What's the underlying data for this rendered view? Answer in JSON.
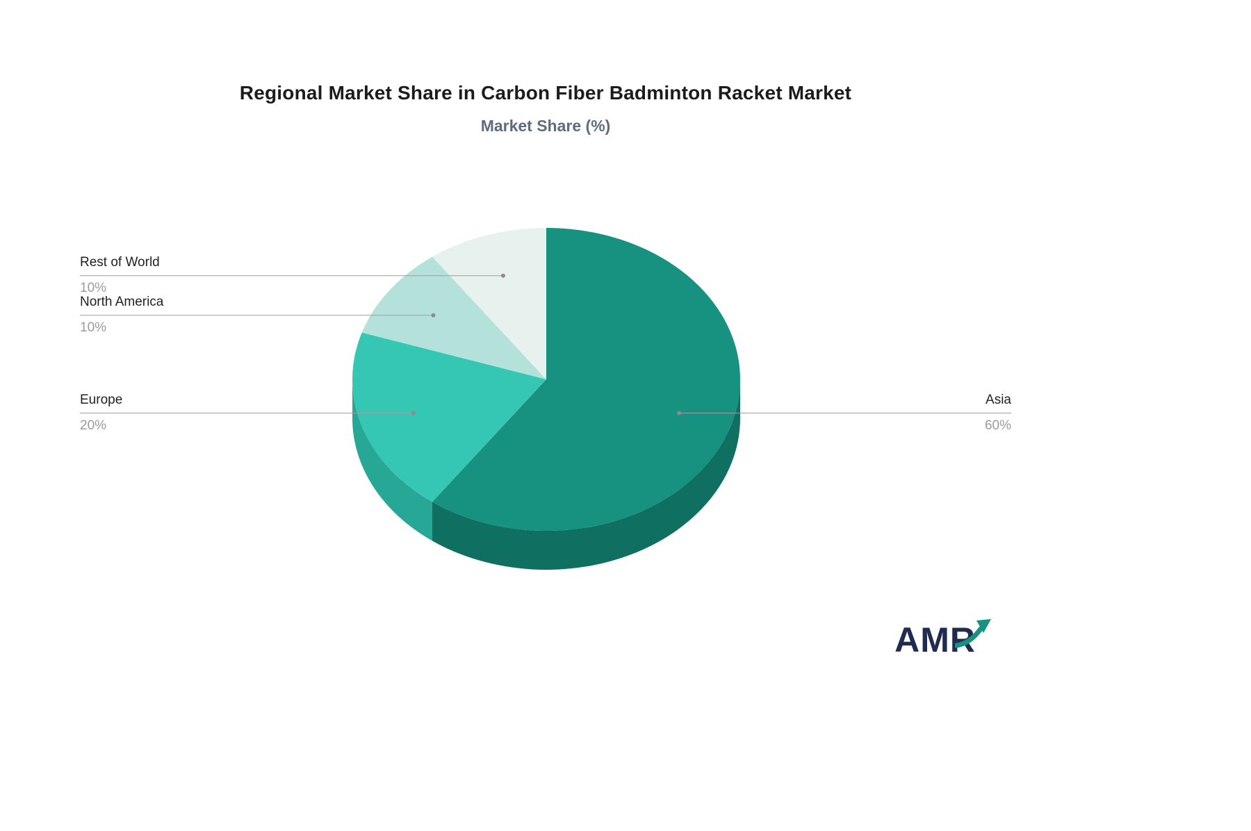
{
  "header": {
    "title": "Regional Market Share in Carbon Fiber Badminton Racket Market",
    "subtitle": "Market Share (%)"
  },
  "chart_data": {
    "type": "pie",
    "title": "Regional Market Share in Carbon Fiber Badminton Racket Market",
    "subtitle": "Market Share (%)",
    "unit": "%",
    "effect_3d": true,
    "start_angle_deg": 0,
    "direction": "clockwise",
    "slices": [
      {
        "label": "Asia",
        "value": 60,
        "pct_label": "60%",
        "color": "#179180",
        "side_color": "#0f7062"
      },
      {
        "label": "Europe",
        "value": 20,
        "pct_label": "20%",
        "color": "#35c7b4",
        "side_color": "#27a795"
      },
      {
        "label": "North America",
        "value": 10,
        "pct_label": "10%",
        "color": "#b4e2da",
        "side_color": "#97cfc6"
      },
      {
        "label": "Rest of World",
        "value": 10,
        "pct_label": "10%",
        "color": "#e7f2ef",
        "side_color": "#cfe2de"
      }
    ]
  },
  "logo": {
    "text": "AMR"
  },
  "colors": {
    "accent_teal": "#179180",
    "logo_navy": "#1f2c50",
    "label_text": "#222222",
    "percent_text": "#9b9b9b",
    "leader_line": "#9e9e9e"
  }
}
